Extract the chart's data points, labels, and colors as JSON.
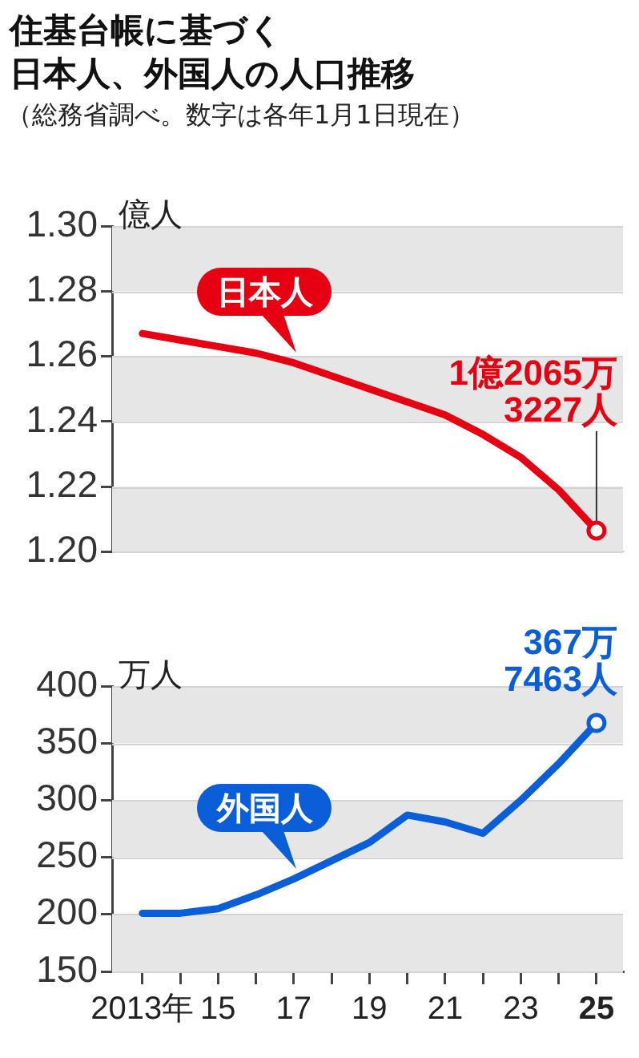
{
  "chart_data": [
    {
      "type": "line",
      "title": "住基台帳に基づく日本人、外国人の人口推移",
      "subtitle": "（総務省調べ。数字は各年1月1日現在）",
      "ylabel": "億人",
      "x": [
        2013,
        2014,
        2015,
        2016,
        2017,
        2018,
        2019,
        2020,
        2021,
        2022,
        2023,
        2024,
        2025
      ],
      "series": [
        {
          "name": "日本人",
          "color": "#e60012",
          "values": [
            1.267,
            1.265,
            1.263,
            1.261,
            1.258,
            1.254,
            1.25,
            1.246,
            1.242,
            1.236,
            1.229,
            1.219,
            1.2065
          ]
        }
      ],
      "annotations": [
        {
          "text": "1億2065万\n3227人",
          "x": 2025,
          "y": 1.2065
        }
      ],
      "xlim": [
        2012.2,
        2025.7
      ],
      "ylim": [
        1.2,
        1.3
      ],
      "yticks": [
        {
          "value": 1.2,
          "label": "1.20"
        },
        1.22,
        1.24,
        1.26,
        1.28,
        {
          "value": 1.3,
          "label": "1.30"
        }
      ],
      "tick_labels": "y",
      "grid": "y",
      "legend": false
    },
    {
      "type": "line",
      "ylabel": "万人",
      "x": [
        2013,
        2014,
        2015,
        2016,
        2017,
        2018,
        2019,
        2020,
        2021,
        2022,
        2023,
        2024,
        2025
      ],
      "series": [
        {
          "name": "外国人",
          "color": "#0a5fd8",
          "values": [
            201,
            201,
            205,
            217,
            231,
            247,
            263,
            287,
            281,
            271,
            300,
            332,
            367.7
          ]
        }
      ],
      "annotations": [
        {
          "text": "367万\n7463人",
          "x": 2025,
          "y": 367.7463
        }
      ],
      "xlim": [
        2012.2,
        2025.7
      ],
      "xticks": [
        {
          "value": 2013,
          "label": "2013年"
        },
        {
          "value": 2014,
          "label": null
        },
        {
          "value": 2015,
          "label": "15"
        },
        {
          "value": 2016,
          "label": null
        },
        {
          "value": 2017,
          "label": "17"
        },
        {
          "value": 2018,
          "label": null
        },
        {
          "value": 2019,
          "label": "19"
        },
        {
          "value": 2020,
          "label": null
        },
        {
          "value": 2021,
          "label": "21"
        },
        {
          "value": 2022,
          "label": null
        },
        {
          "value": 2023,
          "label": "23"
        },
        {
          "value": 2024,
          "label": null
        },
        {
          "value": 2025,
          "label": "25"
        }
      ],
      "ylim": [
        150,
        400
      ],
      "yticks": [
        150,
        200,
        250,
        300,
        350,
        400
      ],
      "grid": "y",
      "legend": false
    }
  ]
}
